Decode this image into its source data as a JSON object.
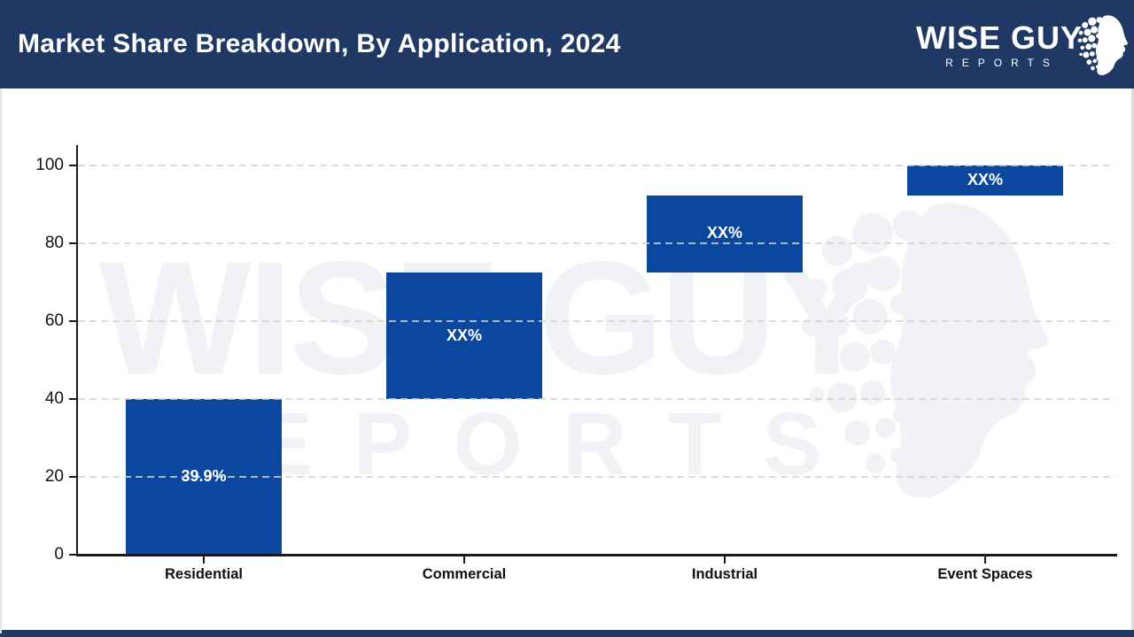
{
  "header": {
    "title": "Market Share Breakdown, By Application, 2024",
    "logo": {
      "line1": "WISE GUY",
      "line2": "REPORTS",
      "face_icon": "dotted-head-profile"
    }
  },
  "watermark": {
    "line1": "WISE GUY",
    "line2": "REPORTS",
    "face_icon": "dotted-head-profile"
  },
  "colors": {
    "header_navy": "#203864",
    "footer_navy": "#203864",
    "bar_blue": "#0b479e",
    "grid_gray": "#d2d2d2",
    "axis_black": "#1a1a1a",
    "bar_label_white": "#ffffff",
    "watermark_gray": "#f1f2f5"
  },
  "chart_data": {
    "type": "bar",
    "subtype": "waterfall",
    "title": "Market Share Breakdown, By Application, 2024",
    "categories": [
      "Residential",
      "Commercial",
      "Industrial",
      "Event Spaces"
    ],
    "segments": [
      {
        "category": "Residential",
        "start": 0,
        "end": 39.9,
        "label": "39.9%"
      },
      {
        "category": "Commercial",
        "start": 39.9,
        "end": 72.5,
        "label": "XX%"
      },
      {
        "category": "Industrial",
        "start": 72.5,
        "end": 92.3,
        "label": "XX%"
      },
      {
        "category": "Event Spaces",
        "start": 92.3,
        "end": 100,
        "label": "XX%"
      }
    ],
    "y_ticks": [
      0,
      20,
      40,
      60,
      80,
      100
    ],
    "ylim": [
      0,
      100
    ],
    "xlabel": "",
    "ylabel": "",
    "legend": "none",
    "grid": "horizontal-dashed-over-bars"
  }
}
